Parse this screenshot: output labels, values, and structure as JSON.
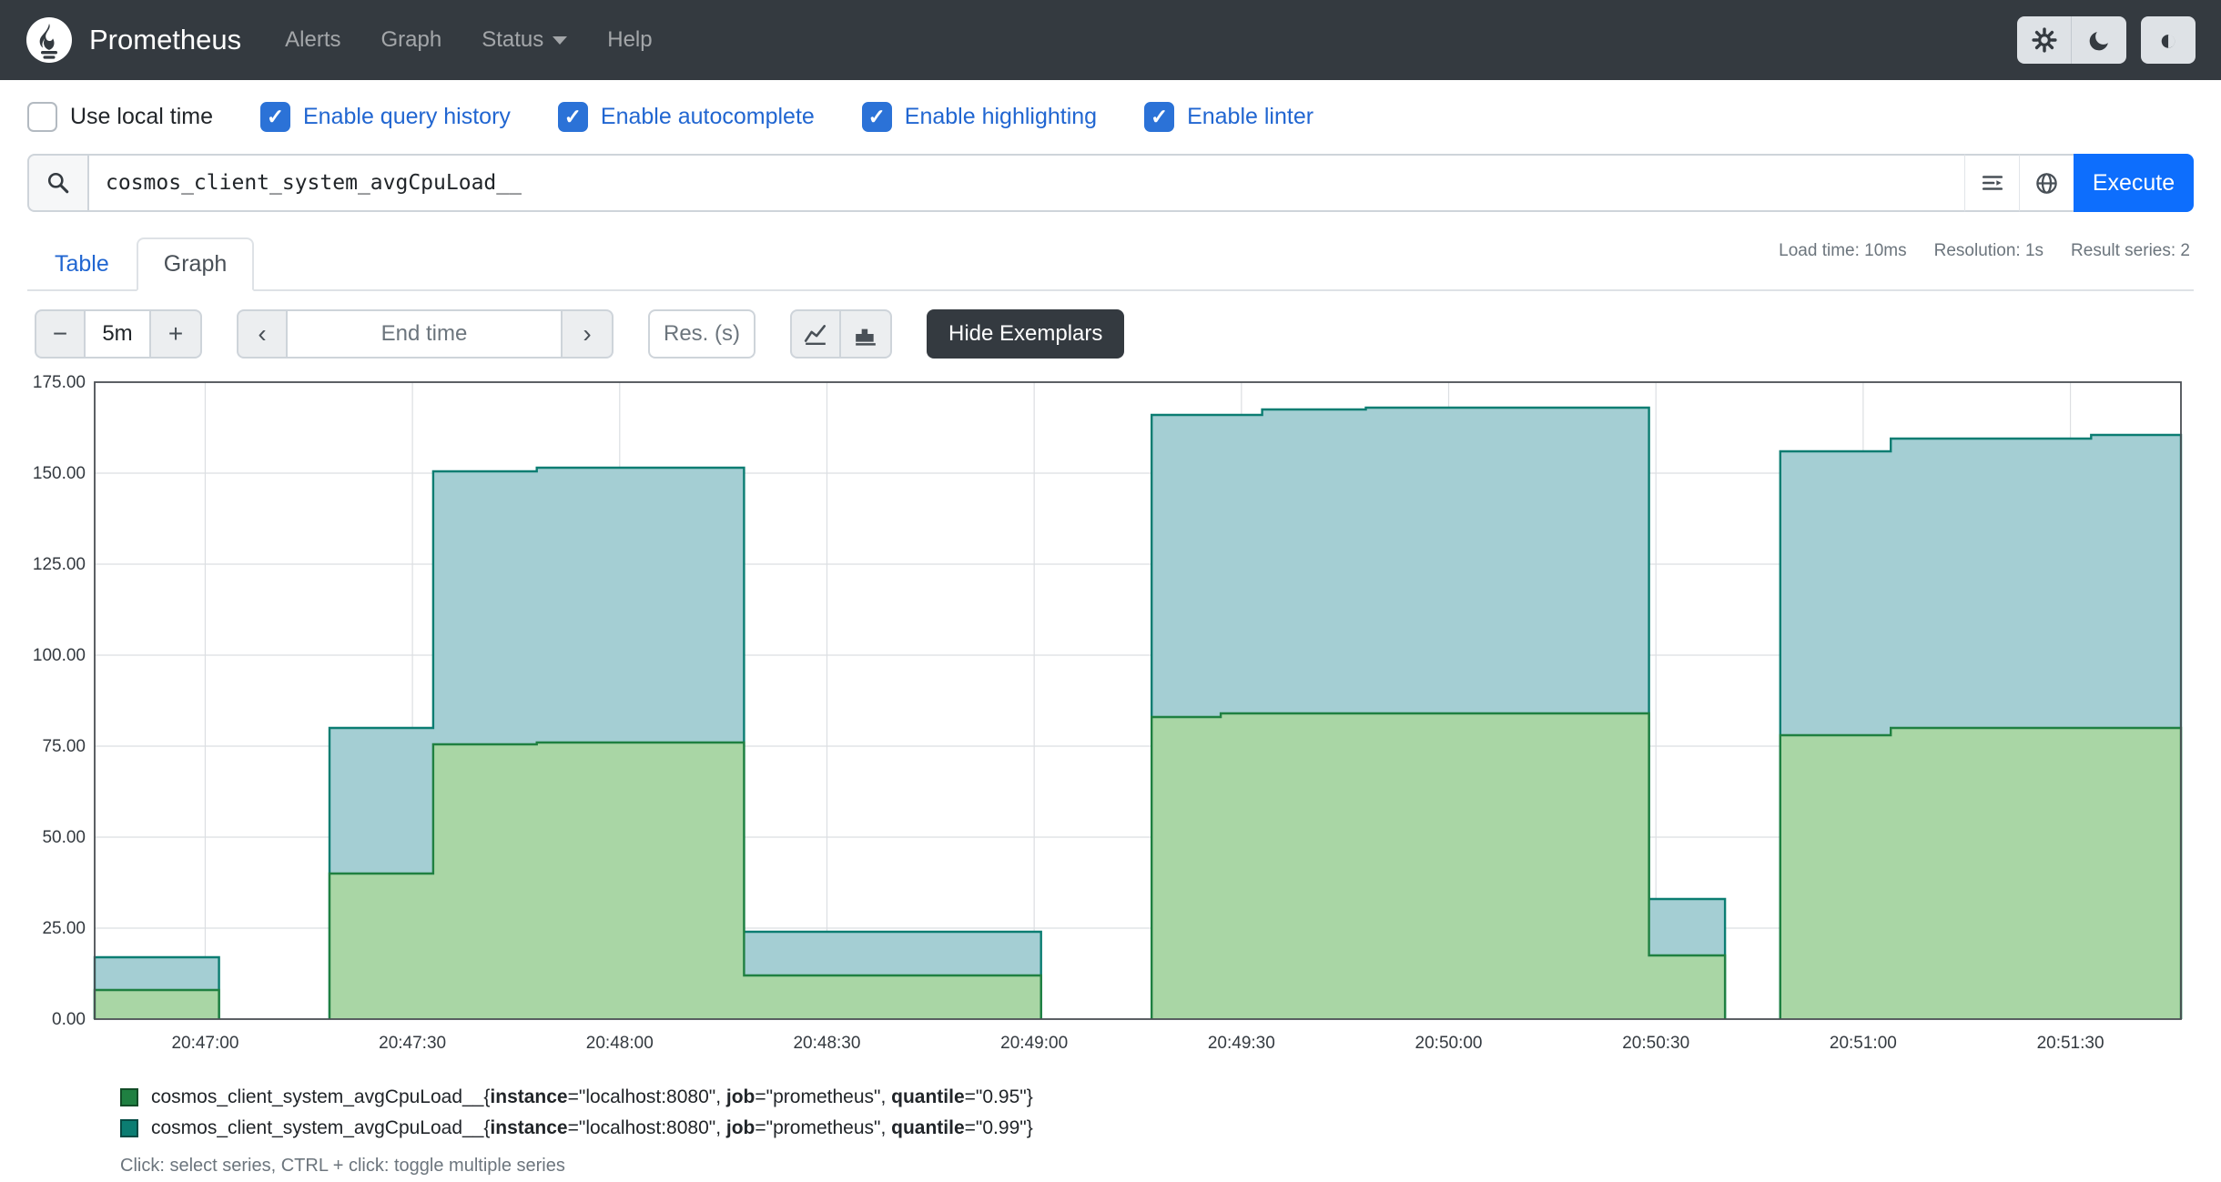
{
  "colors": {
    "navbar_bg": "#343a40",
    "accent_blue": "#0d6efd",
    "checkbox_blue": "#2b72d7",
    "link_blue": "#2166d1",
    "series_green": "#1f8041",
    "series_teal": "#0b7d72"
  },
  "icons": {
    "gear": "⚙",
    "contrast": "◐",
    "minus": "−",
    "plus": "+",
    "prev": "‹",
    "next": "›",
    "check": "✓"
  },
  "navbar": {
    "brand": "Prometheus",
    "items": [
      {
        "label": "Alerts",
        "has_caret": false
      },
      {
        "label": "Graph",
        "has_caret": false
      },
      {
        "label": "Status",
        "has_caret": true
      },
      {
        "label": "Help",
        "has_caret": false
      }
    ]
  },
  "options": {
    "checkboxes": [
      {
        "label": "Use local time",
        "checked": false
      },
      {
        "label": "Enable query history",
        "checked": true
      },
      {
        "label": "Enable autocomplete",
        "checked": true
      },
      {
        "label": "Enable highlighting",
        "checked": true
      },
      {
        "label": "Enable linter",
        "checked": true
      }
    ]
  },
  "query": {
    "value": "cosmos_client_system_avgCpuLoad__",
    "execute_label": "Execute"
  },
  "stats": {
    "load_time": "Load time: 10ms",
    "resolution": "Resolution: 1s",
    "result_series": "Result series: 2"
  },
  "tabs": [
    {
      "label": "Table",
      "active": false
    },
    {
      "label": "Graph",
      "active": true
    }
  ],
  "controls": {
    "range": "5m",
    "end_time_placeholder": "End time",
    "res_placeholder": "Res. (s)",
    "hide_exemplars": "Hide Exemplars"
  },
  "chart_data": {
    "type": "area",
    "title": "",
    "xlabel": "",
    "ylabel": "",
    "ylim": [
      0,
      175
    ],
    "y_tick_step": 25,
    "y_label_format": "2dp",
    "grid": true,
    "x_range_seconds": [
      0,
      302
    ],
    "x_ticks": [
      {
        "t": 16,
        "label": "20:47:00"
      },
      {
        "t": 46,
        "label": "20:47:30"
      },
      {
        "t": 76,
        "label": "20:48:00"
      },
      {
        "t": 106,
        "label": "20:48:30"
      },
      {
        "t": 136,
        "label": "20:49:00"
      },
      {
        "t": 166,
        "label": "20:49:30"
      },
      {
        "t": 196,
        "label": "20:50:00"
      },
      {
        "t": 226,
        "label": "20:50:30"
      },
      {
        "t": 256,
        "label": "20:51:00"
      },
      {
        "t": 286,
        "label": "20:51:30"
      }
    ],
    "series": [
      {
        "name": "quantile 0.99",
        "stroke": "#0b7d72",
        "fill": "#a4ced3",
        "legend": {
          "metric": "cosmos_client_system_avgCpuLoad__",
          "labels": [
            {
              "k": "instance",
              "v": "localhost:8080"
            },
            {
              "k": "job",
              "v": "prometheus"
            },
            {
              "k": "quantile",
              "v": "0.99"
            }
          ]
        },
        "segments": [
          [
            [
              0,
              17
            ],
            [
              18,
              17
            ]
          ],
          [
            [
              34,
              80
            ],
            [
              49,
              80
            ],
            [
              49,
              150.5
            ],
            [
              64,
              150.5
            ],
            [
              64,
              151.5
            ],
            [
              94,
              151.5
            ],
            [
              94,
              24
            ],
            [
              137,
              24
            ]
          ],
          [
            [
              153,
              166
            ],
            [
              169,
              166
            ],
            [
              169,
              167.5
            ],
            [
              184,
              167.5
            ],
            [
              184,
              168
            ],
            [
              225,
              168
            ],
            [
              225,
              33
            ],
            [
              236,
              33
            ]
          ],
          [
            [
              244,
              156
            ],
            [
              260,
              156
            ],
            [
              260,
              159.5
            ],
            [
              289,
              159.5
            ],
            [
              289,
              160.5
            ],
            [
              302,
              160.5
            ]
          ]
        ]
      },
      {
        "name": "quantile 0.95",
        "stroke": "#1f8041",
        "fill": "#a9d6a5",
        "legend": {
          "metric": "cosmos_client_system_avgCpuLoad__",
          "labels": [
            {
              "k": "instance",
              "v": "localhost:8080"
            },
            {
              "k": "job",
              "v": "prometheus"
            },
            {
              "k": "quantile",
              "v": "0.95"
            }
          ]
        },
        "segments": [
          [
            [
              0,
              8
            ],
            [
              18,
              8
            ]
          ],
          [
            [
              34,
              40
            ],
            [
              49,
              40
            ],
            [
              49,
              75.5
            ],
            [
              64,
              75.5
            ],
            [
              64,
              76
            ],
            [
              94,
              76
            ],
            [
              94,
              12
            ],
            [
              137,
              12
            ]
          ],
          [
            [
              153,
              83
            ],
            [
              163,
              83
            ],
            [
              163,
              84
            ],
            [
              225,
              84
            ],
            [
              225,
              17.5
            ],
            [
              236,
              17.5
            ]
          ],
          [
            [
              244,
              78
            ],
            [
              260,
              78
            ],
            [
              260,
              80
            ],
            [
              302,
              80
            ]
          ]
        ]
      }
    ],
    "legend_hint": "Click: select series, CTRL + click: toggle multiple series"
  }
}
